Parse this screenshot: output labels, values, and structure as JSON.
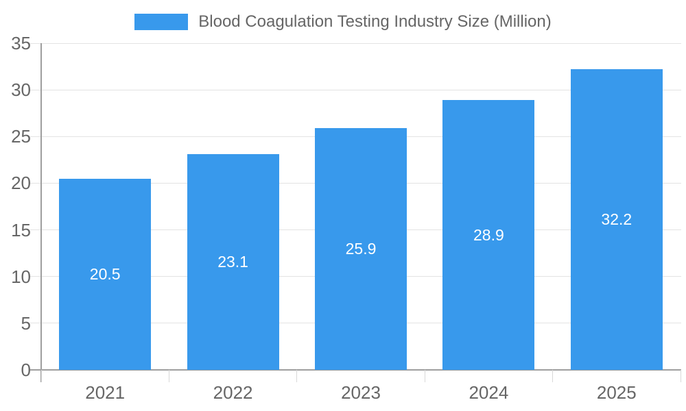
{
  "chart_data": {
    "type": "bar",
    "categories": [
      "2021",
      "2022",
      "2023",
      "2024",
      "2025"
    ],
    "series": [
      {
        "name": "Blood Coagulation Testing Industry Size (Million)",
        "values": [
          20.5,
          23.1,
          25.9,
          28.9,
          32.2
        ]
      }
    ],
    "value_labels": [
      "20.5",
      "23.1",
      "25.9",
      "28.9",
      "32.2"
    ],
    "yticks": [
      "0",
      "5",
      "10",
      "15",
      "20",
      "25",
      "30",
      "35"
    ],
    "ylim": [
      0,
      35
    ],
    "ytick_step": 5,
    "grid": true,
    "legend_position": "top",
    "xlabel": "",
    "ylabel": "",
    "colors": {
      "bar": "#3899EC",
      "grid": "#E3E3E3",
      "axis": "#9E9E9E",
      "x_tick": "#D8D8D8",
      "text": "#666666",
      "value_label": "#FFFFFF",
      "background": "#FFFFFF"
    }
  }
}
